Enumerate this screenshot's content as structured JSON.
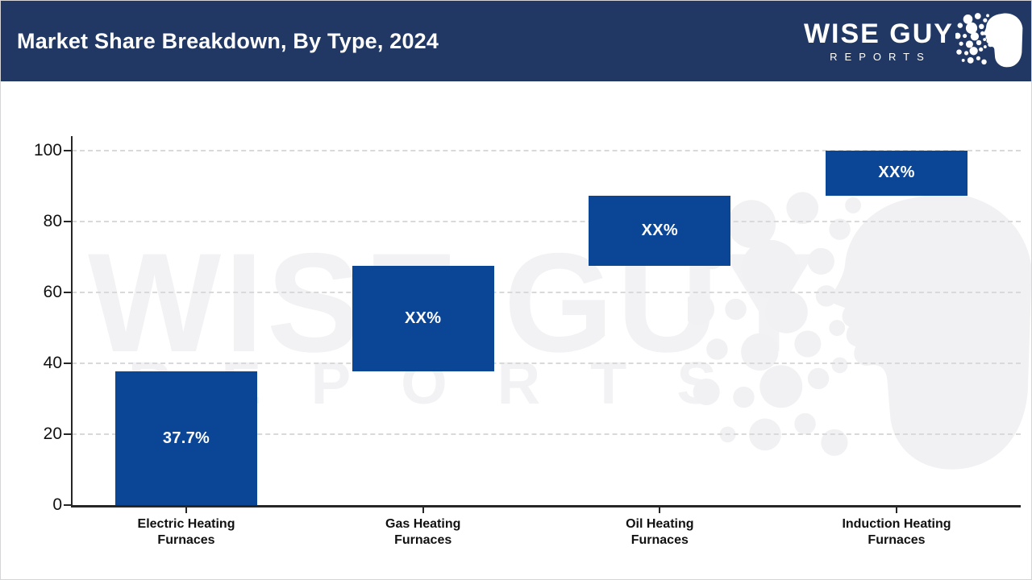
{
  "header": {
    "title": "Market Share Breakdown, By Type, 2024",
    "logo": {
      "wordmark": "WISE GUY",
      "subtitle": "REPORTS"
    }
  },
  "watermark": {
    "line1": "WISE GUY",
    "line2": "REPORTS"
  },
  "chart_data": {
    "type": "bar",
    "subtype": "waterfall",
    "title": "Market Share Breakdown, By Type, 2024",
    "categories": [
      "Electric Heating\nFurnaces",
      "Gas Heating\nFurnaces",
      "Oil Heating\nFurnaces",
      "Induction Heating\nFurnaces"
    ],
    "series": [
      {
        "name": "Market share (%)",
        "segments": [
          {
            "category": "Electric Heating Furnaces",
            "start": 0,
            "end": 37.7,
            "label": "37.7%"
          },
          {
            "category": "Gas Heating Furnaces",
            "start": 37.7,
            "end": 67.5,
            "label": "XX%"
          },
          {
            "category": "Oil Heating Furnaces",
            "start": 67.5,
            "end": 87.3,
            "label": "XX%"
          },
          {
            "category": "Induction Heating Furnaces",
            "start": 87.3,
            "end": 100,
            "label": "XX%"
          }
        ]
      }
    ],
    "xlabel": "",
    "ylabel": "",
    "ylim": [
      0,
      100
    ],
    "yticks": [
      0,
      20,
      40,
      60,
      80,
      100
    ],
    "grid": "horizontal-dashed",
    "legend": "none",
    "bar_color": "#0b4596",
    "bar_label_color": "#ffffff"
  }
}
